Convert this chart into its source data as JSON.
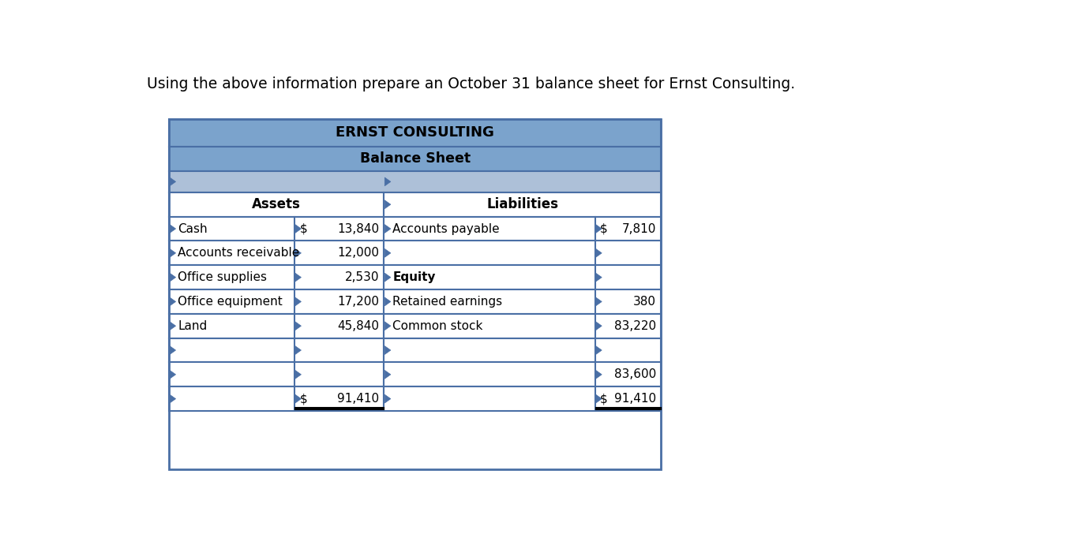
{
  "title_line1": "ERNST CONSULTING",
  "title_line2": "Balance Sheet",
  "instruction": "Using the above information prepare an October 31 balance sheet for Ernst Consulting.",
  "header_bg": "#7ba3cc",
  "header_bg2": "#adc0d8",
  "border_color": "#4a6fa5",
  "assets_header": "Assets",
  "liabilities_header": "Liabilities",
  "equity_header": "Equity",
  "assets": [
    {
      "label": "Cash",
      "dollar": "$",
      "value": "13,840"
    },
    {
      "label": "Accounts receivable",
      "dollar": "",
      "value": "12,000"
    },
    {
      "label": "Office supplies",
      "dollar": "",
      "value": "2,530"
    },
    {
      "label": "Office equipment",
      "dollar": "",
      "value": "17,200"
    },
    {
      "label": "Land",
      "dollar": "",
      "value": "45,840"
    }
  ],
  "asset_total_dollar": "$",
  "asset_total": "91,410",
  "liabilities": [
    {
      "label": "Accounts payable",
      "dollar": "$",
      "value": "7,810"
    }
  ],
  "equity": [
    {
      "label": "Retained earnings",
      "dollar": "",
      "value": "380"
    },
    {
      "label": "Common stock",
      "dollar": "",
      "value": "83,220"
    }
  ],
  "equity_subtotal": "83,600",
  "liability_total_dollar": "$",
  "liability_total": "91,410"
}
